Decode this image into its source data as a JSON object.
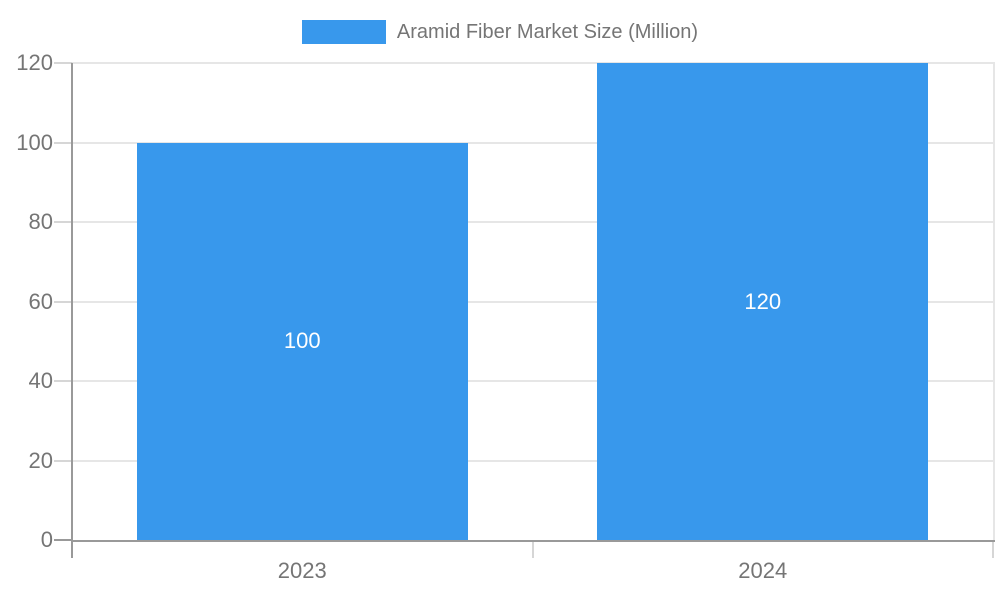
{
  "legend": {
    "label": "Aramid Fiber Market Size (Million)"
  },
  "colors": {
    "bar": "#3898EC",
    "axis": "#999999",
    "grid": "#E6E6E6",
    "tick_light": "#D6D6D6",
    "axis_text": "#757575",
    "bar_label_text": "#FFFFFF",
    "background": "#FFFFFF"
  },
  "chart_data": {
    "type": "bar",
    "title": "Aramid Fiber Market Size (Million)",
    "categories": [
      "2023",
      "2024"
    ],
    "values": [
      100,
      120
    ],
    "data_labels": [
      "100",
      "120"
    ],
    "series": [
      {
        "name": "Aramid Fiber Market Size (Million)",
        "values": [
          100,
          120
        ]
      }
    ],
    "xlabel": "",
    "ylabel": "",
    "ylim": [
      0,
      120
    ],
    "yticks": [
      0,
      20,
      40,
      60,
      80,
      100,
      120
    ],
    "grid": true,
    "legend_position": "top-center"
  }
}
